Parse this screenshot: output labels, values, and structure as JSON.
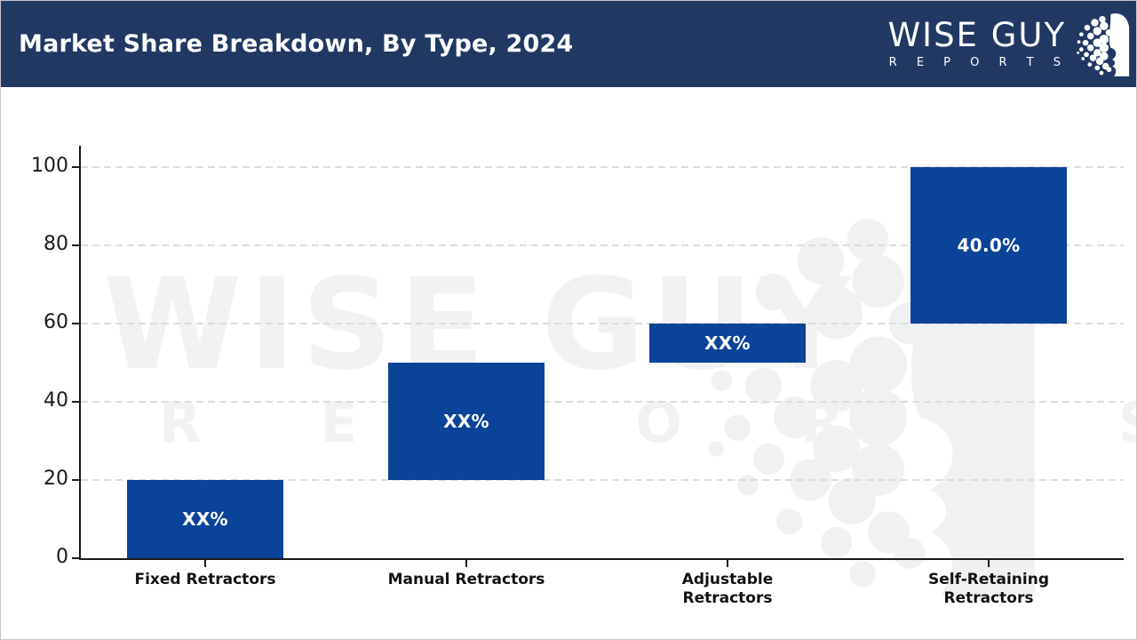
{
  "header": {
    "title": "Market Share Breakdown, By Type, 2024",
    "logo": {
      "name": "WISE GUY",
      "sub": "R E P O R T S"
    }
  },
  "watermark": {
    "line1": "WISE GUY",
    "line2": "R E P O R T S"
  },
  "chart_data": {
    "type": "bar",
    "subtype": "waterfall",
    "title": "Market Share Breakdown, By Type, 2024",
    "categories": [
      "Fixed Retractors",
      "Manual Retractors",
      "Adjustable Retractors",
      "Self-Retaining Retractors"
    ],
    "segments": [
      {
        "category": "Fixed Retractors",
        "start": 0,
        "end": 20,
        "label": "XX%"
      },
      {
        "category": "Manual Retractors",
        "start": 20,
        "end": 50,
        "label": "XX%"
      },
      {
        "category": "Adjustable Retractors",
        "start": 50,
        "end": 60,
        "label": "XX%"
      },
      {
        "category": "Self-Retaining Retractors",
        "start": 60,
        "end": 100,
        "label": "40.0%"
      }
    ],
    "ylim": [
      0,
      100
    ],
    "yticks": [
      0,
      20,
      40,
      60,
      80,
      100
    ],
    "xlabel": "",
    "ylabel": "",
    "grid": "horizontal-dashed",
    "legend": "none"
  },
  "colors": {
    "header_bg": "#213863",
    "bar": "#0b4399",
    "bar_label": "#ffffff",
    "grid": "#dcdcdc",
    "axis": "#1a1a1a",
    "watermark": "#f1f2f4",
    "background": "#ffffff"
  }
}
